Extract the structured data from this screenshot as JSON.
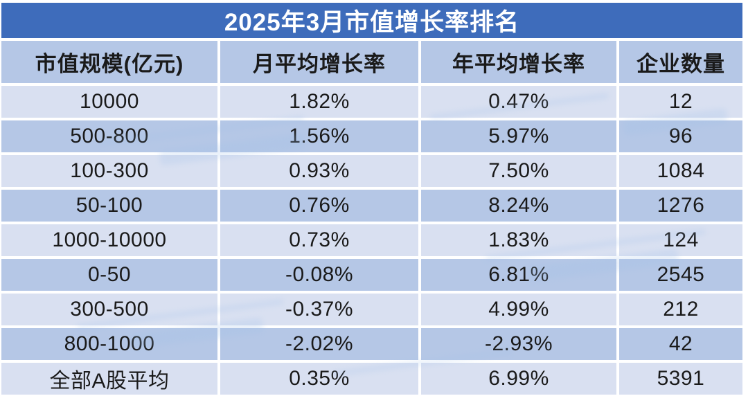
{
  "title": "2025年3月市值增长率排名",
  "columns": [
    "市值规模(亿元)",
    "月平均增长率",
    "年平均增长率",
    "企业数量"
  ],
  "rows": [
    [
      "10000",
      "1.82%",
      "0.47%",
      "12"
    ],
    [
      "500-800",
      "1.56%",
      "5.97%",
      "96"
    ],
    [
      "100-300",
      "0.93%",
      "7.50%",
      "1084"
    ],
    [
      "50-100",
      "0.76%",
      "8.24%",
      "1276"
    ],
    [
      "1000-10000",
      "0.73%",
      "1.83%",
      "124"
    ],
    [
      "0-50",
      "-0.08%",
      "6.81%",
      "2545"
    ],
    [
      "300-500",
      "-0.37%",
      "4.99%",
      "212"
    ],
    [
      "800-1000",
      "-2.02%",
      "-2.93%",
      "42"
    ],
    [
      "全部A股平均",
      "0.35%",
      "6.99%",
      "5391"
    ]
  ],
  "colors": {
    "title_bar": "#3E6CBB",
    "title_text": "#FFFFFF",
    "header_row": "#B5C7E6",
    "row_light": "#D9E0F1",
    "row_dark": "#B5C7E6",
    "text_dark": "#1A1A1A",
    "divider": "#FFFFFF"
  },
  "chart_data": {
    "type": "table",
    "title": "2025年3月市值增长率排名",
    "columns": [
      "市值规模(亿元)",
      "月平均增长率",
      "年平均增长率",
      "企业数量"
    ],
    "rows": [
      {
        "market_cap_range": "10000",
        "monthly_avg_growth": "1.82%",
        "yearly_avg_growth": "0.47%",
        "company_count": 12
      },
      {
        "market_cap_range": "500-800",
        "monthly_avg_growth": "1.56%",
        "yearly_avg_growth": "5.97%",
        "company_count": 96
      },
      {
        "market_cap_range": "100-300",
        "monthly_avg_growth": "0.93%",
        "yearly_avg_growth": "7.50%",
        "company_count": 1084
      },
      {
        "market_cap_range": "50-100",
        "monthly_avg_growth": "0.76%",
        "yearly_avg_growth": "8.24%",
        "company_count": 1276
      },
      {
        "market_cap_range": "1000-10000",
        "monthly_avg_growth": "0.73%",
        "yearly_avg_growth": "1.83%",
        "company_count": 124
      },
      {
        "market_cap_range": "0-50",
        "monthly_avg_growth": "-0.08%",
        "yearly_avg_growth": "6.81%",
        "company_count": 2545
      },
      {
        "market_cap_range": "300-500",
        "monthly_avg_growth": "-0.37%",
        "yearly_avg_growth": "4.99%",
        "company_count": 212
      },
      {
        "market_cap_range": "800-1000",
        "monthly_avg_growth": "-2.02%",
        "yearly_avg_growth": "-2.93%",
        "company_count": 42
      },
      {
        "market_cap_range": "全部A股平均",
        "monthly_avg_growth": "0.35%",
        "yearly_avg_growth": "6.99%",
        "company_count": 5391
      }
    ]
  }
}
